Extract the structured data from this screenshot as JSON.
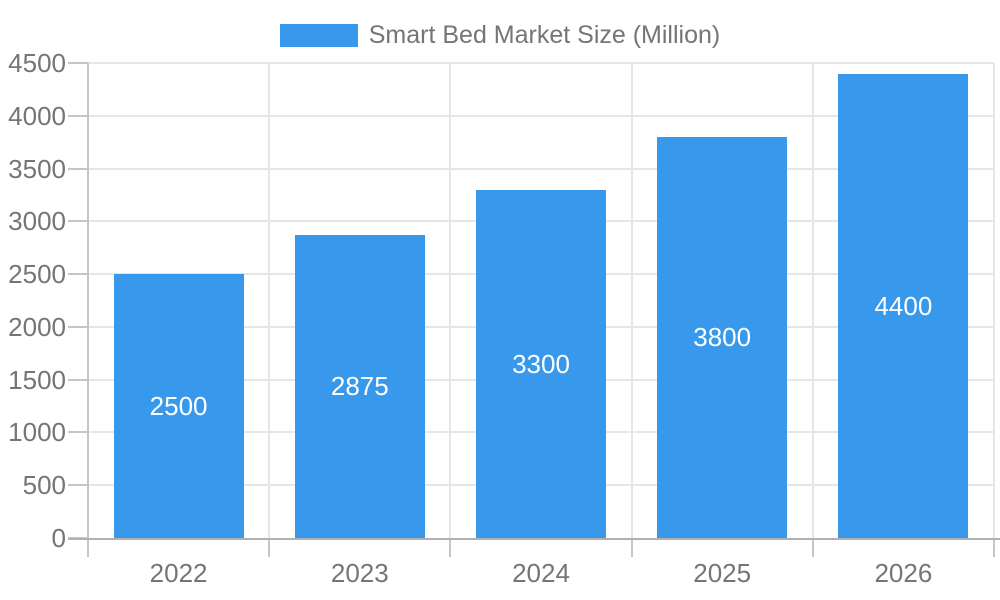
{
  "chart_data": {
    "type": "bar",
    "title": "Smart Bed Market Size (Million)",
    "categories": [
      "2022",
      "2023",
      "2024",
      "2025",
      "2026"
    ],
    "values": [
      2500,
      2875,
      3300,
      3800,
      4400
    ],
    "xlabel": "",
    "ylabel": "",
    "ylim": [
      0,
      4500
    ],
    "yticks": [
      0,
      500,
      1000,
      1500,
      2000,
      2500,
      3000,
      3500,
      4000,
      4500
    ],
    "grid": true,
    "bar_value_labels_visible": true,
    "legend": {
      "position": "top",
      "label": "Smart Bed Market Size (Million)"
    }
  },
  "colors": {
    "bar": "#3899ec",
    "bar_label_text": "#ffffff",
    "tick_label_text": "#757575",
    "legend_text": "#757575",
    "gridline": "#e6e6e6",
    "x_axis_line": "#b1b1b1",
    "y_axis_line": "#c6c6c6"
  }
}
